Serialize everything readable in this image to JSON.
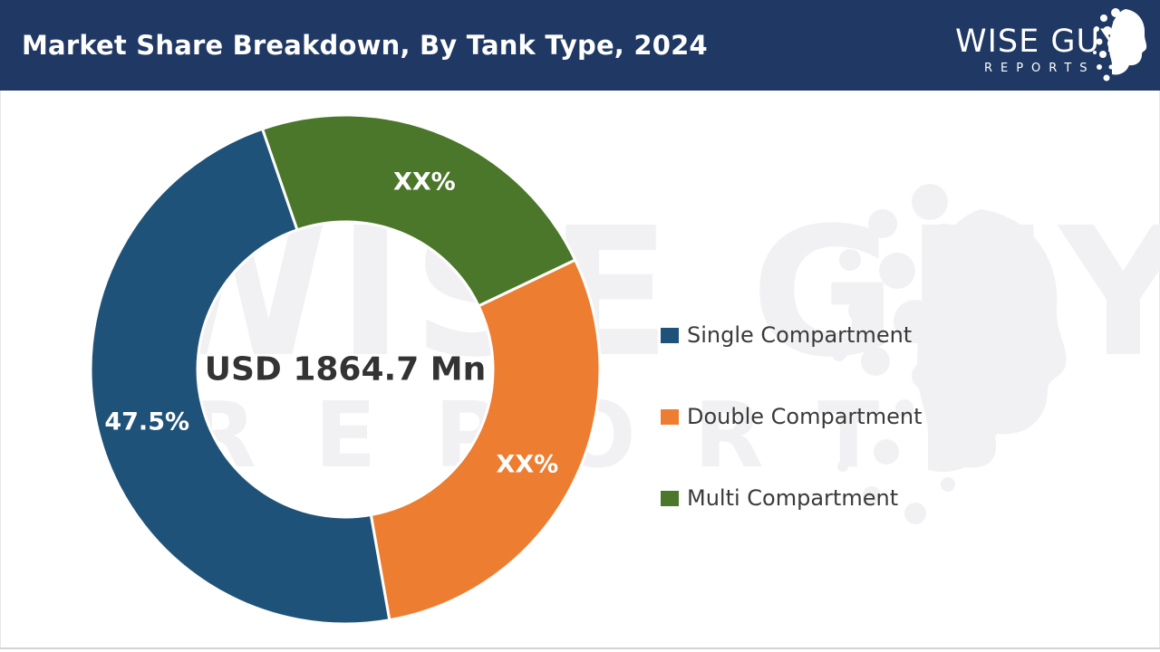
{
  "header": {
    "title": "Market Share Breakdown, By Tank Type, 2024",
    "bg_color": "#1F3864",
    "logo": {
      "line1": "WISE GUY",
      "line2": "REPORTS"
    }
  },
  "watermark": {
    "line1": "WISE GUY",
    "line2": "REPORTS"
  },
  "chart_data": {
    "type": "pie",
    "subtype": "donut",
    "title": "Market Share Breakdown, By Tank Type, 2024",
    "center_label": "USD 1864.7 Mn",
    "start_angle_deg": -19,
    "legend_position": "right",
    "segments": [
      {
        "name": "Multi Compartment",
        "label": "XX%",
        "pct": 23.2,
        "color": "#4A7729"
      },
      {
        "name": "Double Compartment",
        "label": "XX%",
        "pct": 29.3,
        "color": "#ED7D31"
      },
      {
        "name": "Single Compartment",
        "label": "47.5%",
        "pct": 47.5,
        "color": "#1F5278"
      }
    ],
    "legend": [
      {
        "label": "Single Compartment",
        "color": "#1F5278"
      },
      {
        "label": "Double Compartment",
        "color": "#ED7D31"
      },
      {
        "label": "Multi Compartment",
        "color": "#4A7729"
      }
    ]
  }
}
